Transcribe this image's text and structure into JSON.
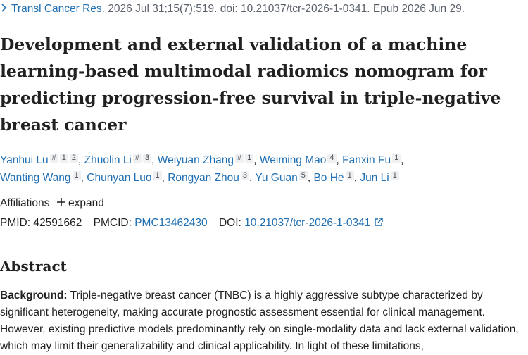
{
  "citation": {
    "journal": "Transl Cancer Res.",
    "details": "2026 Jul 31;15(7):519. doi: 10.21037/tcr-2026-1-0341. Epub 2026 Jun 29."
  },
  "title": "Development and external validation of a machine learning-based multimodal radiomics nomogram for predicting progression-free survival in triple-negative breast cancer",
  "authors": {
    "separator": ",",
    "list": [
      {
        "name": "Yanhui Lu",
        "sups": [
          "#",
          "1",
          "2"
        ]
      },
      {
        "name": "Zhuolin Li",
        "sups": [
          "#",
          "3"
        ]
      },
      {
        "name": "Weiyuan Zhang",
        "sups": [
          "#",
          "1"
        ]
      },
      {
        "name": "Weiming Mao",
        "sups": [
          "4"
        ]
      },
      {
        "name": "Fanxin Fu",
        "sups": [
          "1"
        ]
      },
      {
        "name": "Wanting Wang",
        "sups": [
          "1"
        ]
      },
      {
        "name": "Chunyan Luo",
        "sups": [
          "1"
        ]
      },
      {
        "name": "Rongyan Zhou",
        "sups": [
          "3"
        ]
      },
      {
        "name": "Yu Guan",
        "sups": [
          "5"
        ]
      },
      {
        "name": "Bo He",
        "sups": [
          "1"
        ]
      },
      {
        "name": "Jun Li",
        "sups": [
          "1"
        ]
      }
    ]
  },
  "affiliations": {
    "label": "Affiliations",
    "toggle": "expand"
  },
  "identifiers": {
    "pmid_label": "PMID:",
    "pmid": "42591662",
    "pmcid_label": "PMCID:",
    "pmcid": "PMC13462430",
    "doi_label": "DOI:",
    "doi": "10.21037/tcr-2026-1-0341"
  },
  "abstract": {
    "heading": "Abstract",
    "sections": [
      {
        "label": "Background:",
        "text": "Triple-negative breast cancer (TNBC) is a highly aggressive subtype characterized by significant heterogeneity, making accurate prognostic assessment essential for clinical management. However, existing predictive models predominantly rely on single-modality data and lack external validation, which may limit their generalizability and clinical applicability. In light of these limitations,"
      }
    ]
  }
}
